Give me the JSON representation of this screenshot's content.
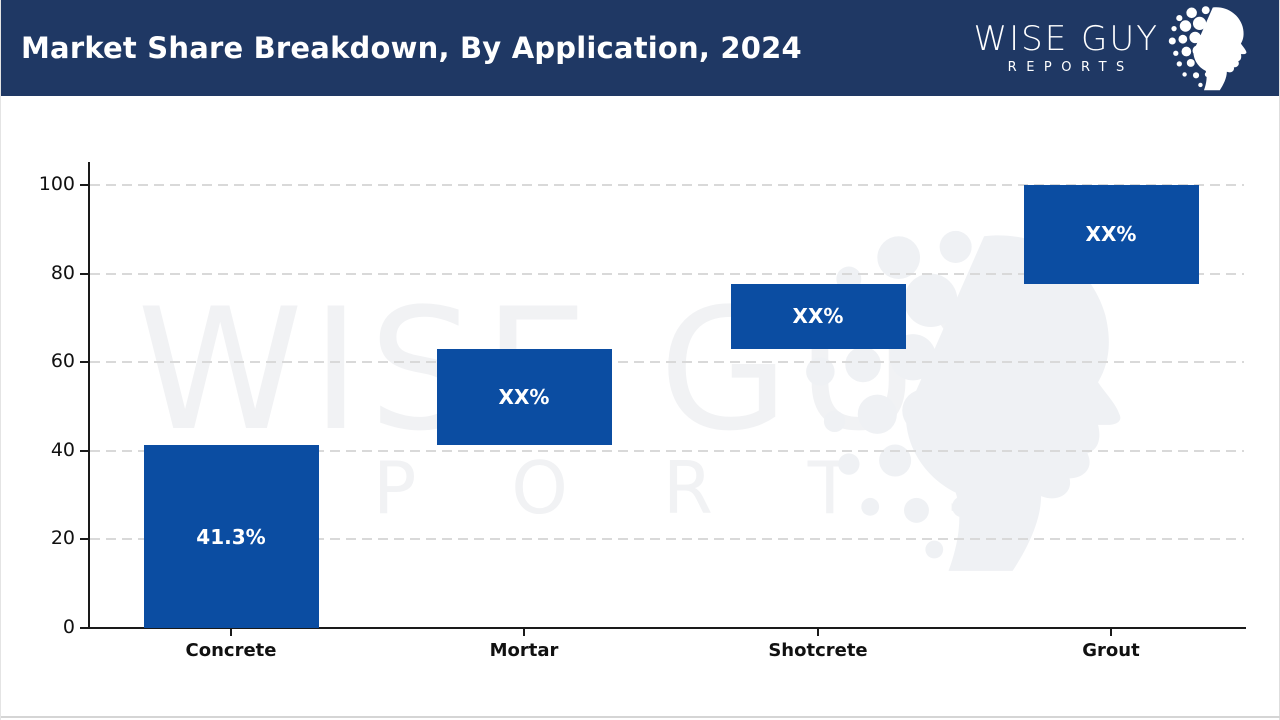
{
  "header": {
    "title": "Market Share Breakdown, By Application, 2024",
    "logo": {
      "line1": "WISE GUY",
      "line2": "REPORTS"
    }
  },
  "watermark": {
    "line1": "WISE GUY",
    "line2": "P O R T S"
  },
  "chart_data": {
    "type": "bar",
    "subtype": "waterfall",
    "title": "Market Share Breakdown, By Application, 2024",
    "categories": [
      "Concrete",
      "Mortar",
      "Shotcrete",
      "Grout"
    ],
    "values": [
      41.3,
      21.7,
      14.7,
      22.3
    ],
    "labels": [
      "41.3%",
      "XX%",
      "XX%",
      "XX%"
    ],
    "bar_segments": [
      {
        "category": "Concrete",
        "start": 0,
        "end": 41.3,
        "label": "41.3%"
      },
      {
        "category": "Mortar",
        "start": 41.3,
        "end": 63.0,
        "label": "XX%"
      },
      {
        "category": "Shotcrete",
        "start": 63.0,
        "end": 77.7,
        "label": "XX%"
      },
      {
        "category": "Grout",
        "start": 77.7,
        "end": 100,
        "label": "XX%"
      }
    ],
    "xlabel": "",
    "ylabel": "",
    "ylim": [
      0,
      100
    ],
    "yticks": [
      0,
      20,
      40,
      60,
      80,
      100
    ],
    "grid": "horizontal-dashed",
    "legend": "none",
    "bar_color": "#0b4da2",
    "bar_label_color": "#ffffff",
    "header_color": "#1f3864"
  }
}
